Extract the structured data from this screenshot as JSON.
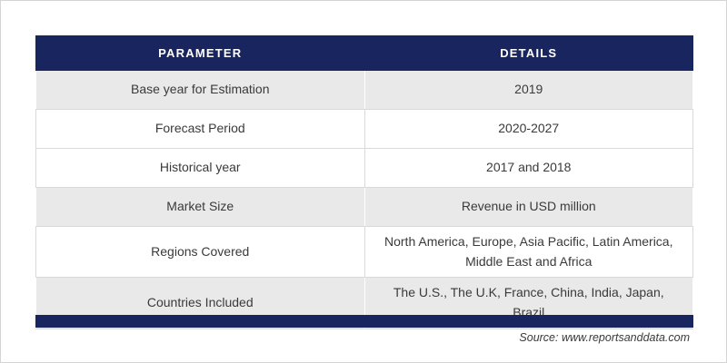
{
  "table": {
    "header": {
      "parameter": "PARAMETER",
      "details": "DETAILS"
    },
    "rows": [
      {
        "parameter": "Base year for Estimation",
        "details": "2019"
      },
      {
        "parameter": "Forecast Period",
        "details": "2020-2027"
      },
      {
        "parameter": "Historical year",
        "details": "2017 and 2018"
      },
      {
        "parameter": "Market Size",
        "details": "Revenue in USD million"
      },
      {
        "parameter": "Regions Covered",
        "details": "North America, Europe, Asia Pacific, Latin America, Middle East and Africa"
      },
      {
        "parameter": "Countries Included",
        "details": "The U.S., The  U.K, France, China, India, Japan, Brazil"
      }
    ]
  },
  "footer": {
    "source": "Source: www.reportsanddata.com"
  },
  "colors": {
    "header_bg": "#19255e",
    "row_alt_bg": "#e9e9e9",
    "row_bg": "#ffffff",
    "text": "#3a3a3a"
  }
}
